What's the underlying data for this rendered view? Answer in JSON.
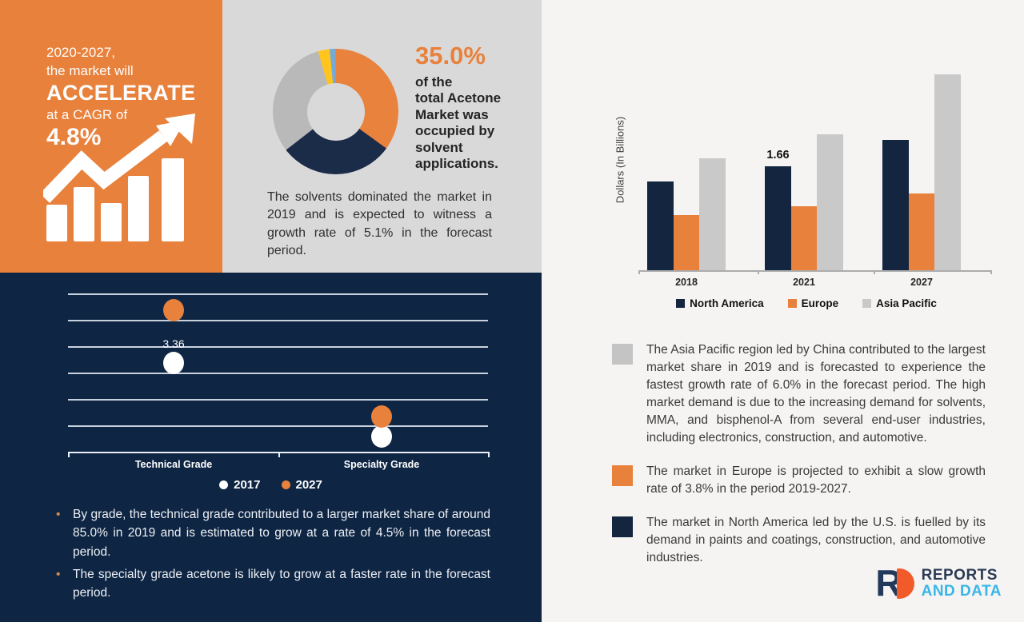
{
  "colors": {
    "orange": "#E8813B",
    "navy_panel": "#0E2543",
    "navy_dark": "#13253F",
    "gray_panel": "#D9D9D9",
    "gray_bar": "#C9C9C9",
    "right_bg": "#F5F4F2",
    "white": "#FFFFFF",
    "yellow": "#FFC41D",
    "light_blue": "#74A9D8",
    "logo_navy": "#23395B",
    "logo_orange": "#F15A29",
    "logo_cyan": "#38B6E9"
  },
  "promo": {
    "line1": "2020-2027,",
    "line2": "the market will",
    "line3": "ACCELERATE",
    "line4": "at a CAGR of",
    "line5": "4.8%"
  },
  "solvent": {
    "pct": "35.0%",
    "caption": "of the\ntotal Acetone\nMarket was\noccupied by\nsolvent\napplications.",
    "paragraph": "The solvents dominated the market in 2019 and is expected to witness a growth rate of 5.1% in the forecast period."
  },
  "grade_bullets": [
    "By grade, the technical grade contributed to a larger market share of around 85.0% in 2019 and is estimated to grow at a rate of 4.5% in the forecast period.",
    "The specialty grade acetone is likely to grow at a faster rate in the forecast period."
  ],
  "region_notes": [
    {
      "name": "asia-pacific",
      "color": "#C4C4C4",
      "text": "The Asia Pacific region led by China contributed to the largest market share in 2019 and is forecasted to experience the fastest growth rate of 6.0% in the forecast period. The high market demand is due to the increasing demand for solvents, MMA, and bisphenol-A from several end-user industries, including electronics, construction, and automotive."
    },
    {
      "name": "europe",
      "color": "#E8813B",
      "text": "The market in Europe is projected to exhibit a slow growth rate of 3.8% in the period 2019-2027."
    },
    {
      "name": "north-america",
      "color": "#13253F",
      "text": "The market in North America led by the U.S. is fuelled by its demand in paints and coatings, construction, and automotive industries."
    }
  ],
  "logo": {
    "monogram": "R",
    "reports": "REPORTS",
    "and_data": "AND DATA"
  },
  "chart_data": [
    {
      "type": "pie",
      "subtype": "donut",
      "description": "Acetone market share by application (solvents highlighted)",
      "highlight_label": "35.0%",
      "segments": [
        {
          "name": "solvent-applications",
          "value": 35,
          "color": "#E8823C"
        },
        {
          "name": "segment-navy",
          "value": 29.5,
          "color": "#1B2C49"
        },
        {
          "name": "segment-gray",
          "value": 31,
          "color": "#B9B9B9"
        },
        {
          "name": "segment-yellow",
          "value": 3,
          "color": "#FFC41D"
        },
        {
          "name": "segment-blue",
          "value": 1.5,
          "color": "#74A9D8"
        }
      ]
    },
    {
      "type": "scatter",
      "description": "Acetone market by grade, 2017 vs 2027",
      "categories": [
        "Technical Grade",
        "Specialty Grade"
      ],
      "series": [
        {
          "name": "2017",
          "color": "#FFFFFF",
          "values": [
            3.36,
            0.58
          ]
        },
        {
          "name": "2027",
          "color": "#E8813B",
          "values": [
            5.36,
            1.33
          ]
        }
      ],
      "ylim": [
        0,
        6
      ],
      "gridline_step": 1,
      "grid": true,
      "legend_position": "bottom",
      "data_labels": [
        {
          "series": "2017",
          "category": "Technical Grade",
          "text": "3.36"
        }
      ]
    },
    {
      "type": "bar",
      "description": "Regional acetone market size",
      "ylabel": "Dollars (In Billions)",
      "xlabel": "",
      "categories": [
        "2018",
        "2021",
        "2027"
      ],
      "series": [
        {
          "name": "North America",
          "color": "#13253F",
          "values": [
            1.42,
            1.66,
            2.08
          ]
        },
        {
          "name": "Europe",
          "color": "#E8813B",
          "values": [
            0.88,
            1.02,
            1.23
          ]
        },
        {
          "name": "Asia Pacific",
          "color": "#C9C9C9",
          "values": [
            1.79,
            2.18,
            3.13
          ]
        }
      ],
      "ylim": [
        0,
        3.3
      ],
      "grid": false,
      "legend_position": "bottom",
      "data_labels": [
        {
          "series": "North America",
          "category": "2021",
          "text": "1.66"
        }
      ]
    }
  ]
}
